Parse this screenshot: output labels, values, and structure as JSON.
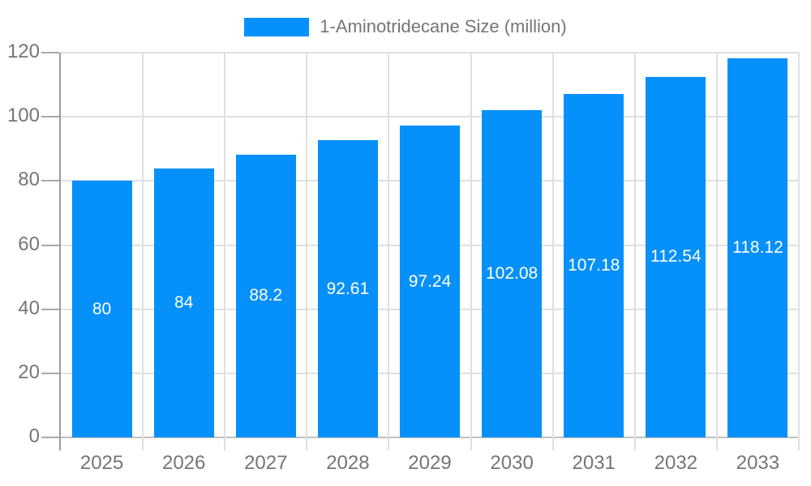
{
  "legend": {
    "label": "1-Aminotridecane Size (million)",
    "swatch_icon": "legend-swatch-blue-rect"
  },
  "colors": {
    "bar": "#0690FA",
    "axis_line": "#9B9B9B",
    "tick": "#A9A9A9",
    "grid": "#E0E0E0",
    "zero_line": "#C0C0C0",
    "axis_text": "#757575",
    "value_text": "#FFFFFF",
    "background": "#FFFFFF"
  },
  "chart_data": {
    "type": "bar",
    "title": "1-Aminotridecane Size (million)",
    "categories": [
      "2025",
      "2026",
      "2027",
      "2028",
      "2029",
      "2030",
      "2031",
      "2032",
      "2033"
    ],
    "series": [
      {
        "name": "1-Aminotridecane Size (million)",
        "values": [
          80,
          84,
          88.2,
          92.61,
          97.24,
          102.08,
          107.18,
          112.54,
          118.12
        ],
        "value_labels": [
          "80",
          "84",
          "88.2",
          "92.61",
          "97.24",
          "102.08",
          "107.18",
          "112.54",
          "118.12"
        ],
        "color": "#0690FA"
      }
    ],
    "xlabel": "",
    "ylabel": "",
    "ylim": [
      0,
      120
    ],
    "yticks": [
      0,
      20,
      40,
      60,
      80,
      100,
      120
    ],
    "grid": true,
    "legend_position": "top",
    "value_labels_inside_bars": true
  }
}
